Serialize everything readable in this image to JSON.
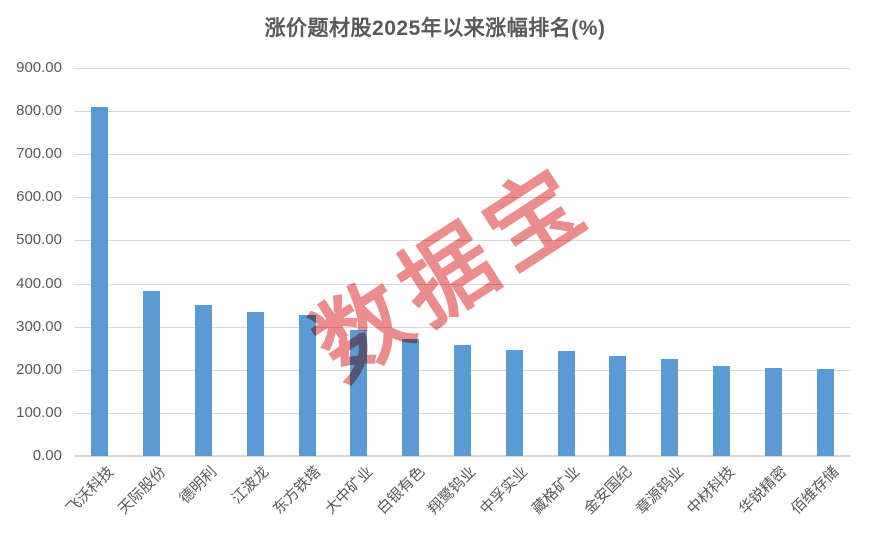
{
  "chart_data": {
    "type": "bar",
    "title": "涨价题材股2025年以来涨幅排名(%)",
    "categories": [
      "飞沃科技",
      "天际股份",
      "德明利",
      "江波龙",
      "东方铁塔",
      "大中矿业",
      "白银有色",
      "翔鹭钨业",
      "中孚实业",
      "藏格矿业",
      "金安国纪",
      "章源钨业",
      "中材科技",
      "华锐精密",
      "佰维存储"
    ],
    "values": [
      810,
      382,
      350,
      335,
      326,
      292,
      272,
      258,
      246,
      243,
      233,
      226,
      208,
      204,
      201
    ],
    "xlabel": "",
    "ylabel": "",
    "ylim": [
      0,
      900
    ],
    "yticks": [
      "900.00",
      "800.00",
      "700.00",
      "600.00",
      "500.00",
      "400.00",
      "300.00",
      "200.00",
      "100.00",
      "0.00"
    ],
    "grid": "horizontal",
    "legend": "none",
    "bar_color": "#5b9bd5",
    "gridline_color": "#d9d9d9",
    "title_color": "#595959",
    "axis_text_color": "#595959"
  },
  "watermark": {
    "text": "数据宝",
    "color": "#ed8c8c"
  }
}
